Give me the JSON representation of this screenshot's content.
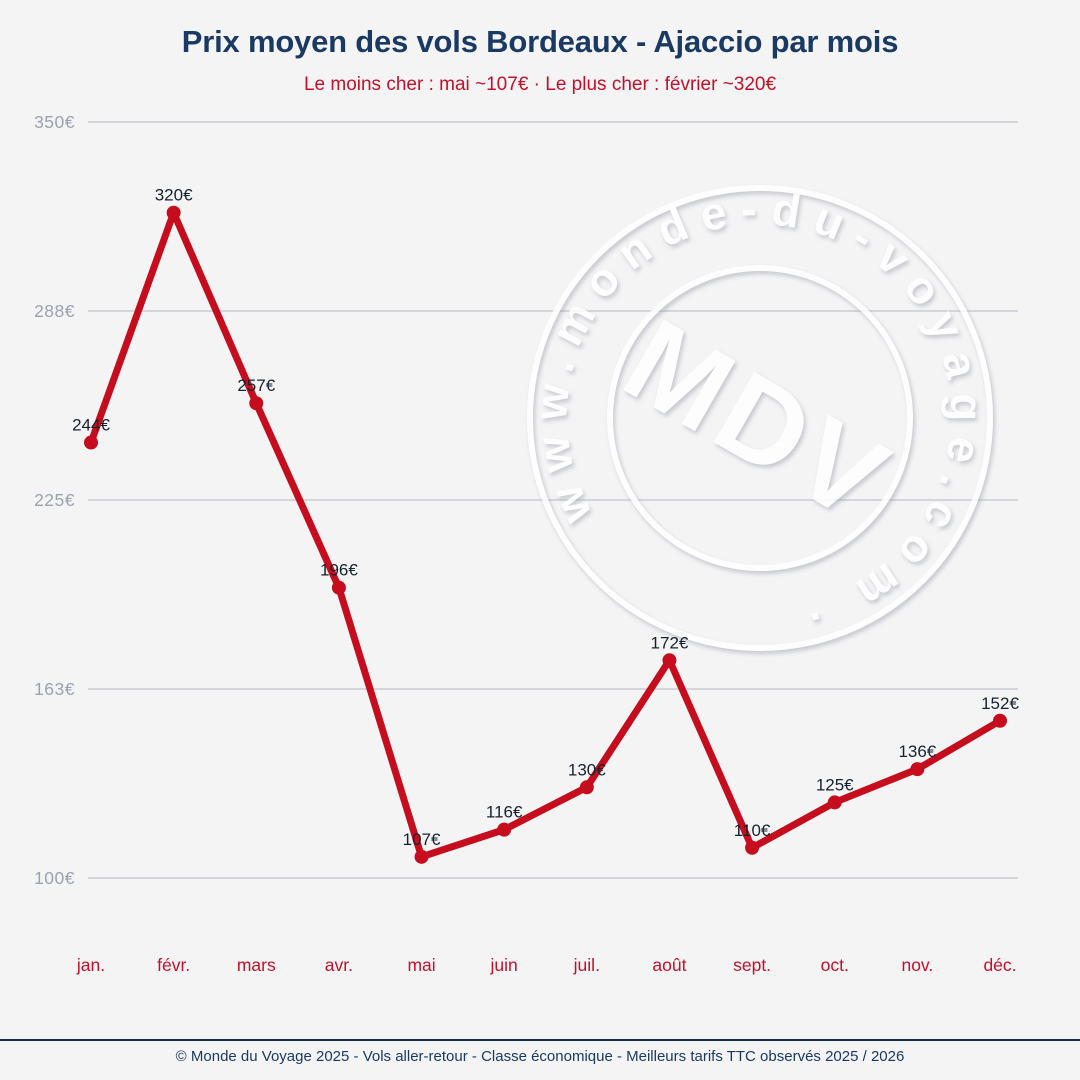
{
  "header": {
    "title": "Prix moyen des vols Bordeaux - Ajaccio par mois",
    "subtitle": "Le moins cher : mai ~107€ · Le plus cher : février ~320€"
  },
  "watermark": {
    "circle_text": "www.monde-du-voyage.com ·",
    "center_text": "MDV"
  },
  "footer": {
    "text": "© Monde du Voyage 2025 - Vols aller-retour - Classe économique - Meilleurs tarifs TTC observés 2025 / 2026"
  },
  "colors": {
    "background": "#f4f4f5",
    "title_navy": "#1b3a63",
    "accent_red": "#c4102a",
    "line_red": "#c50d1e",
    "value_label": "#18222d",
    "y_tick": "#9aa2b0",
    "gridline": "#c9ccd3",
    "footer_line": "#14294d"
  },
  "chart_data": {
    "type": "line",
    "title": "Prix moyen des vols Bordeaux - Ajaccio par mois",
    "subtitle": "Le moins cher : mai ~107€ · Le plus cher : février ~320€",
    "xlabel": "",
    "ylabel": "",
    "categories": [
      "jan.",
      "févr.",
      "mars",
      "avr.",
      "mai",
      "juin",
      "juil.",
      "août",
      "sept.",
      "oct.",
      "nov.",
      "déc."
    ],
    "values": [
      244,
      320,
      257,
      196,
      107,
      116,
      130,
      172,
      110,
      125,
      136,
      152
    ],
    "value_labels": [
      "244€",
      "320€",
      "257€",
      "196€",
      "107€",
      "116€",
      "130€",
      "172€",
      "110€",
      "125€",
      "136€",
      "152€"
    ],
    "y_ticks": [
      {
        "value": 350,
        "label": "350€"
      },
      {
        "value": 287.5,
        "label": "288€"
      },
      {
        "value": 225,
        "label": "225€"
      },
      {
        "value": 162.5,
        "label": "163€"
      },
      {
        "value": 100,
        "label": "100€"
      }
    ],
    "ylim": [
      100,
      350
    ],
    "grid": true,
    "legend": false,
    "line_color": "#c50d1e",
    "marker": "circle"
  }
}
